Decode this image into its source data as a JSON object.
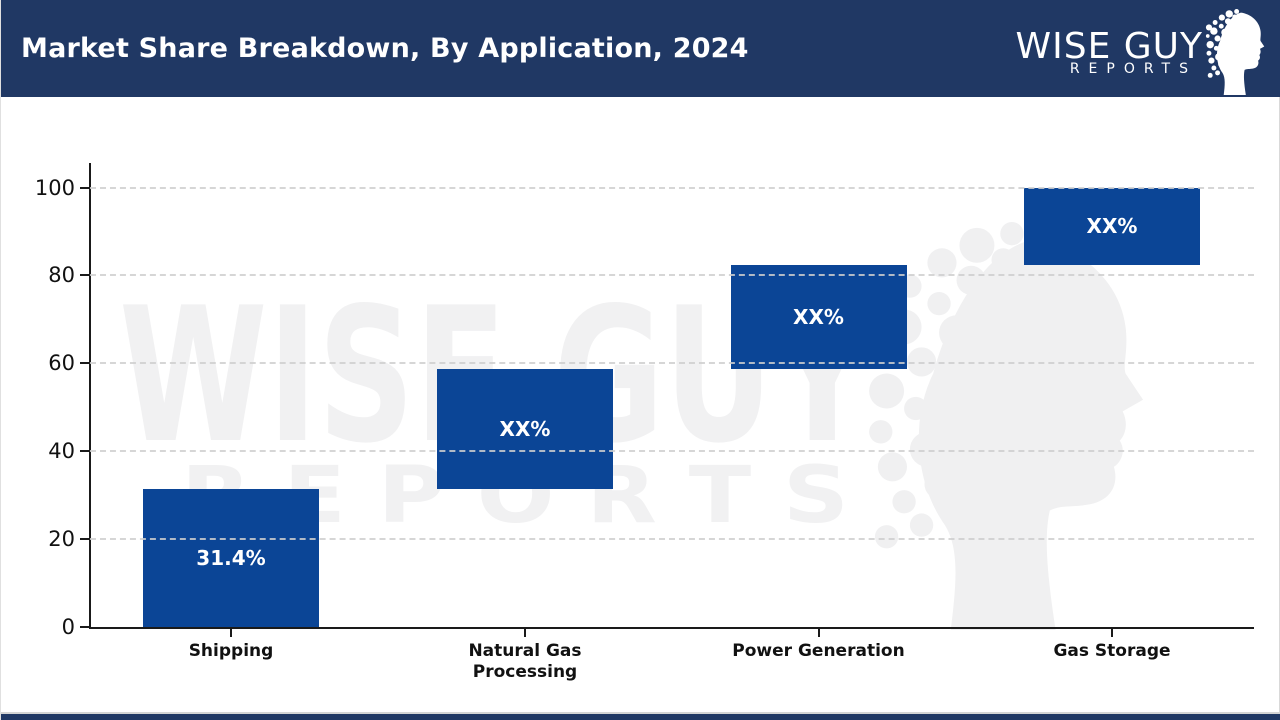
{
  "header": {
    "title": "Market Share Breakdown, By Application, 2024",
    "bg_color": "#203864",
    "logo": {
      "line1": "WISE GUY",
      "line2": "REPORTS"
    }
  },
  "watermark": {
    "line1": "WISE GUY",
    "line2": "R E P O R T S"
  },
  "chart_data": {
    "type": "bar",
    "subtype": "waterfall",
    "title": "Market Share Breakdown, By Application, 2024",
    "categories": [
      "Shipping",
      "Natural Gas\nProcessing",
      "Power Generation",
      "Gas Storage"
    ],
    "series": [
      {
        "name": "Market Share",
        "segments": [
          {
            "category": "Shipping",
            "start": 0,
            "end": 31.4,
            "label": "31.4%"
          },
          {
            "category": "Natural Gas Processing",
            "start": 31.4,
            "end": 58.8,
            "label": "XX%"
          },
          {
            "category": "Power Generation",
            "start": 58.8,
            "end": 82.4,
            "label": "XX%"
          },
          {
            "category": "Gas Storage",
            "start": 82.4,
            "end": 100,
            "label": "XX%"
          }
        ]
      }
    ],
    "xlabel": "",
    "ylabel": "",
    "ylim": [
      0,
      100
    ],
    "yticks": [
      0,
      20,
      40,
      60,
      80,
      100
    ],
    "grid": "horizontal-dashed",
    "legend": "none",
    "bar_color": "#0b4596",
    "label_color": "#ffffff"
  }
}
